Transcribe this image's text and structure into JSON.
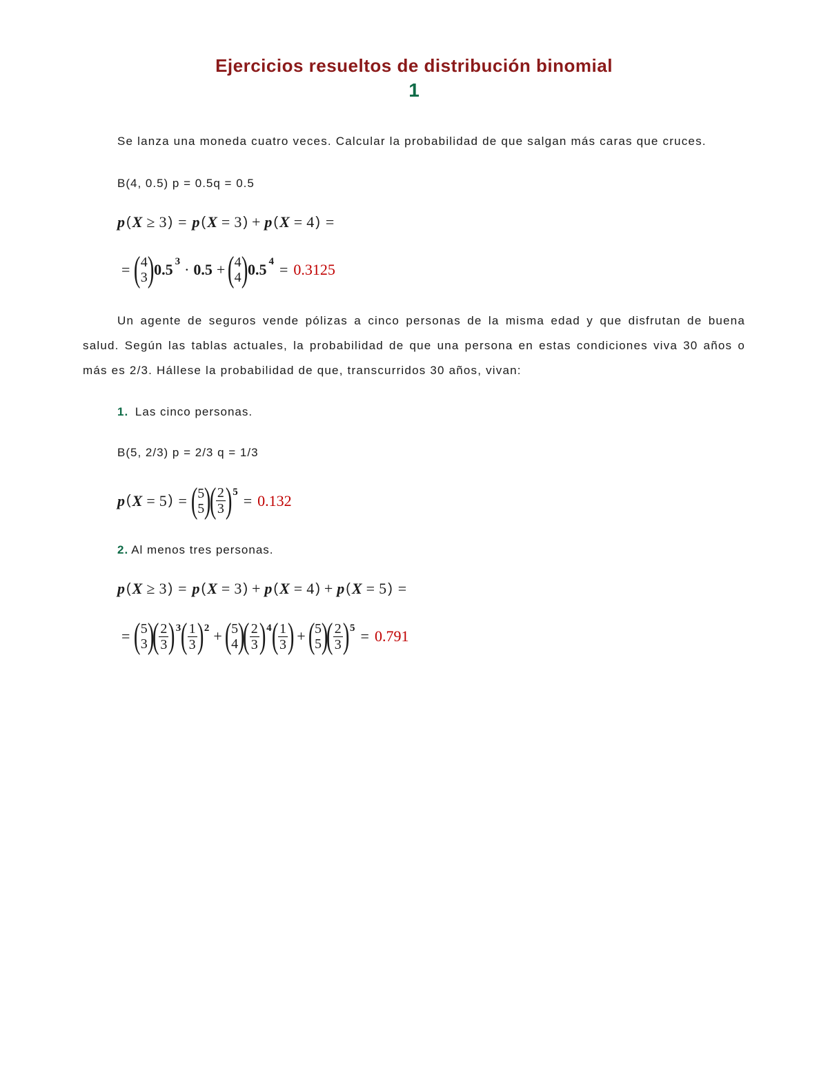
{
  "colors": {
    "title": "#8b1a1a",
    "accent_green": "#0f6b47",
    "result_red": "#c00000",
    "text": "#1a1a1a",
    "background": "#ffffff"
  },
  "typography": {
    "body_font": "Verdana",
    "math_font": "Georgia / Times",
    "title_size_pt": 20,
    "body_size_pt": 13,
    "formula_size_pt": 16
  },
  "title": "Ejercicios resueltos de distribución binomial",
  "title_number": "1",
  "p1": "Se lanza una moneda cuatro veces. Calcular la probabilidad de que salgan más caras que cruces.",
  "line_params1": "B(4, 0.5) p = 0.5q = 0.5",
  "f1": {
    "lhs_p": "p",
    "lhs_open": "(",
    "lhs_X": "X",
    "lhs_ge": "≥",
    "lhs_3": "3",
    "lhs_close": ")",
    "eq": "=",
    "rhs1_p": "p",
    "rhs1_open": "(",
    "rhs1_X": "X",
    "rhs1_eq": "=",
    "rhs1_3": "3",
    "rhs1_close": ")",
    "plus": "+",
    "rhs2_p": "p",
    "rhs2_open": "(",
    "rhs2_X": "X",
    "rhs2_eq": "=",
    "rhs2_4": "4",
    "rhs2_close": ")",
    "tail_eq": "="
  },
  "f2": {
    "lead_eq": "=",
    "b1_top": "4",
    "b1_bot": "3",
    "t1_base": "0.5",
    "t1_exp": "3",
    "dot": "·",
    "t1b": "0.5",
    "plus": "+",
    "b2_top": "4",
    "b2_bot": "4",
    "t2_base": "0.5",
    "t2_exp": "4",
    "eq": "=",
    "result": "0.3125"
  },
  "p2": "Un agente de seguros vende pólizas a cinco personas de la misma edad y que disfrutan de buena salud. Según las tablas actuales, la probabilidad de que una persona en estas condiciones viva 30 años o más es 2/3. Hállese la probabilidad de que, transcurridos 30 años, vivan:",
  "item1_num": "1.",
  "item1_text": " Las cinco personas.",
  "line_params2": "B(5, 2/3) p = 2/3 q = 1/3",
  "f3": {
    "p": "p",
    "open": "(",
    "X": "X",
    "eqX": "=",
    "five": "5",
    "close": ")",
    "eq": "=",
    "b_top": "5",
    "b_bot": "5",
    "fr_num": "2",
    "fr_den": "3",
    "exp": "5",
    "eq2": "=",
    "result": "0.132"
  },
  "item2_num": "2.",
  "item2_text": "Al menos tres personas.",
  "f4": {
    "p": "p",
    "open": "(",
    "X": "X",
    "ge": "≥",
    "three": "3",
    "close": ")",
    "eq": "=",
    "t1p": "p",
    "t1o": "(",
    "t1X": "X",
    "t1eq": "=",
    "t1v": "3",
    "t1c": ")",
    "plus1": "+",
    "t2p": "p",
    "t2o": "(",
    "t2X": "X",
    "t2eq": "=",
    "t2v": "4",
    "t2c": ")",
    "plus2": "+",
    "t3p": "p",
    "t3o": "(",
    "t3X": "X",
    "t3eq": "=",
    "t3v": "5",
    "t3c": ")",
    "tail": "="
  },
  "f5": {
    "lead": "=",
    "b1t": "5",
    "b1b": "3",
    "fr1an": "2",
    "fr1ad": "3",
    "e1a": "3",
    "fr1bn": "1",
    "fr1bd": "3",
    "e1b": "2",
    "plus1": "+",
    "b2t": "5",
    "b2b": "4",
    "fr2an": "2",
    "fr2ad": "3",
    "e2a": "4",
    "fr2bn": "1",
    "fr2bd": "3",
    "plus2": "+",
    "b3t": "5",
    "b3b": "5",
    "fr3n": "2",
    "fr3d": "3",
    "e3": "5",
    "eq": "=",
    "result": "0.791"
  }
}
